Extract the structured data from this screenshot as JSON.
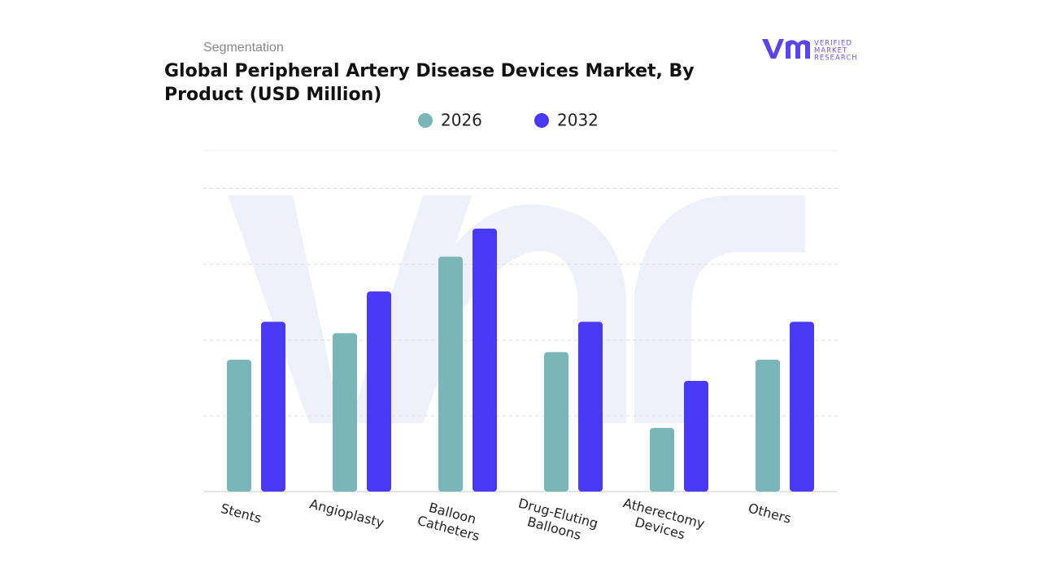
{
  "chart_data": {
    "type": "bar",
    "subtitle": "Segmentation",
    "title": "Global Peripheral Artery Disease Devices Market, By Product (USD Million)",
    "logo": [
      "VERIFIED",
      "MARKET",
      "RESEARCH"
    ],
    "categories": [
      "Stents",
      "Angioplasty",
      "Balloon Catheters",
      "Drug-Eluting Balloons",
      "Atherectomy Devices",
      "Others"
    ],
    "series": [
      {
        "name": "2026",
        "color": "#7ab5b8",
        "values": [
          1.74,
          2.09,
          3.1,
          1.84,
          0.84,
          1.74
        ]
      },
      {
        "name": "2032",
        "color": "#4b3af5",
        "values": [
          2.24,
          2.64,
          3.47,
          2.24,
          1.46,
          2.24
        ]
      }
    ],
    "ylim": [
      0,
      4.5
    ],
    "yticks": [
      1,
      2,
      3,
      4
    ],
    "grid": true
  }
}
